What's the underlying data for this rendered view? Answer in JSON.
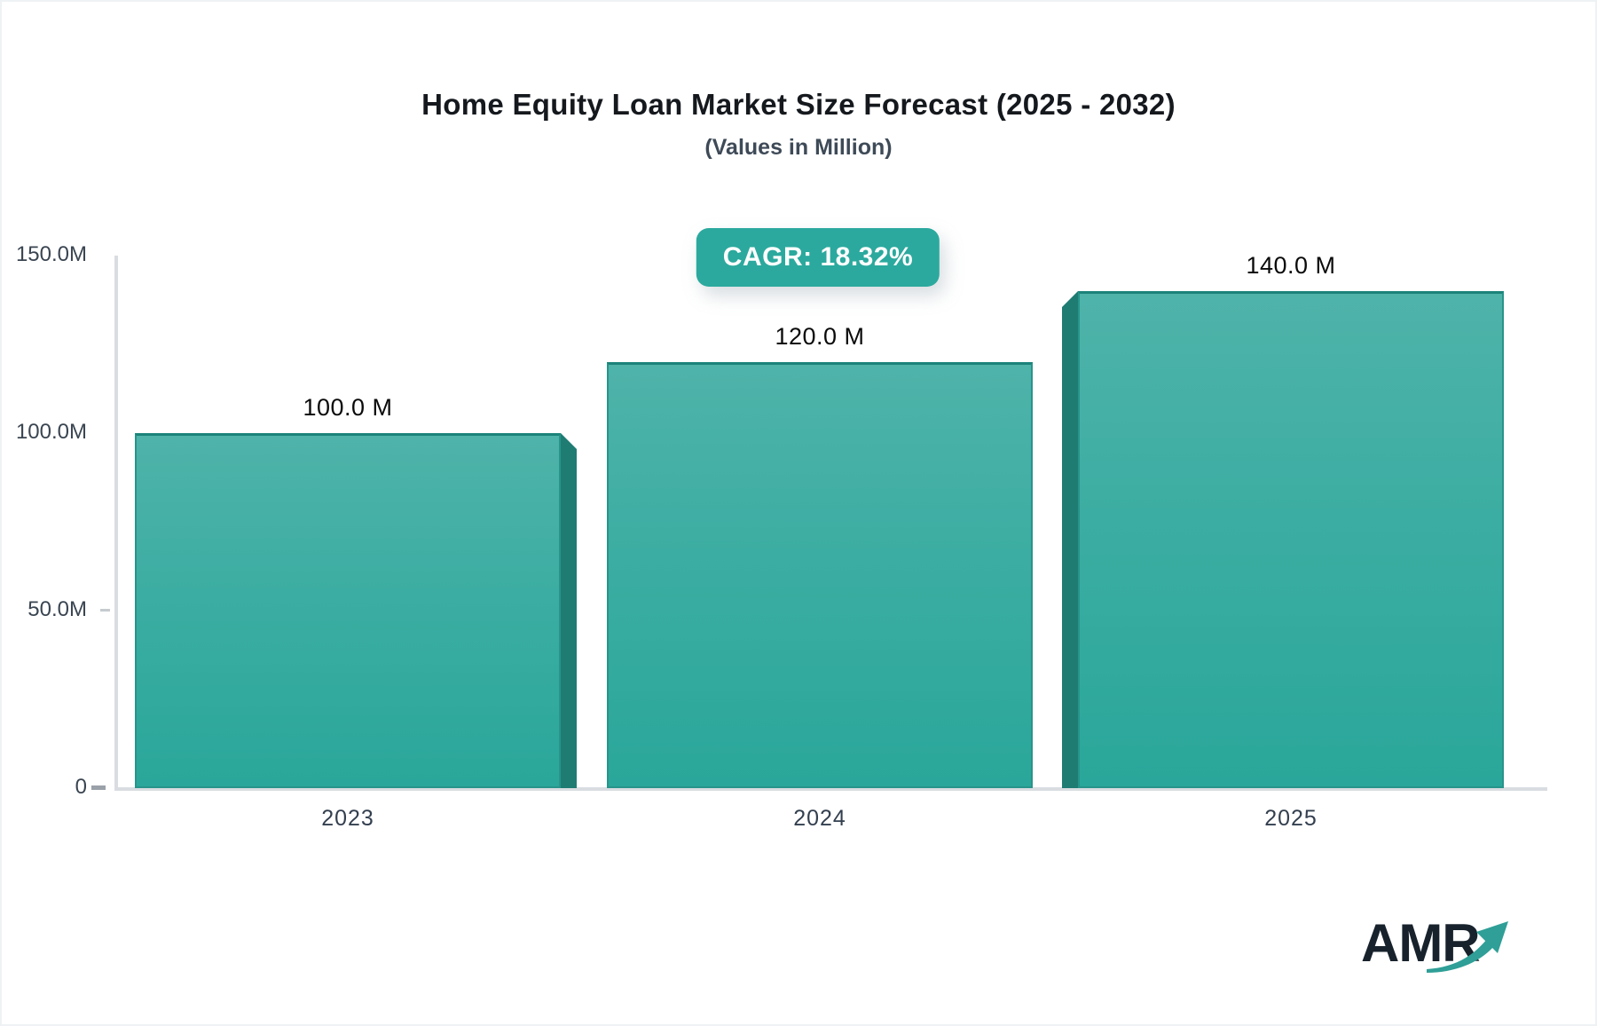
{
  "header": {
    "title": "Home Equity Loan Market Size Forecast (2025 - 2032)",
    "subtitle": "(Values in Million)"
  },
  "badge": {
    "label": "CAGR: 18.32%"
  },
  "chart_data": {
    "type": "bar",
    "title": "Home Equity Loan Market Size Forecast (2025 - 2032)",
    "subtitle": "(Values in Million)",
    "unit": "Million",
    "cagr_label": "CAGR: 18.32%",
    "categories": [
      "2023",
      "2024",
      "2025"
    ],
    "values": [
      100.0,
      120.0,
      140.0
    ],
    "value_labels": [
      "100.0 M",
      "120.0 M",
      "140.0 M"
    ],
    "ylim": [
      0,
      150
    ],
    "yticks": [
      {
        "value": 150,
        "label": "150.0M"
      },
      {
        "value": 100,
        "label": "100.0M"
      },
      {
        "value": 50,
        "label": "50.0M"
      },
      {
        "value": 0,
        "label": "0"
      }
    ],
    "grid": false,
    "legend": false,
    "xlabel": "",
    "ylabel": ""
  },
  "colors": {
    "accent_teal": "#2ba99e",
    "bar_top": "#4fb3aa",
    "bar_bottom": "#2aa79a",
    "bar_side": "#1f7c73",
    "axis_gray": "#d9dde1",
    "title_text": "#15191e",
    "subtitle_text": "#3e4a57",
    "axis_label_text": "#3a4551",
    "category_label_text": "#333f4f",
    "logo_navy": "#17222c",
    "logo_arrow_teal": "#2f9f97"
  },
  "logo": {
    "text": "AMR"
  }
}
